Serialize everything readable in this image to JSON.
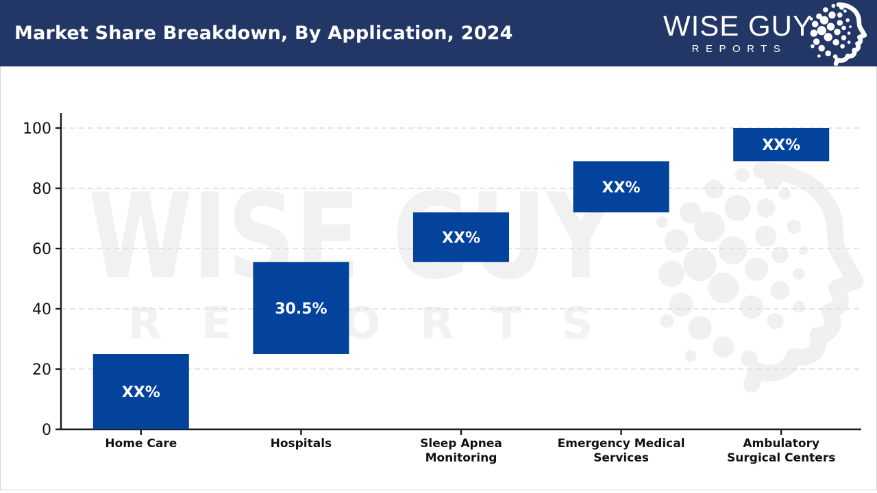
{
  "header": {
    "title": "Market Share Breakdown, By Application, 2024",
    "logo": {
      "line1": "WISE GUY",
      "line2": "REPORTS"
    }
  },
  "watermark": {
    "line1": "WISE GUY",
    "line2": "REPORTS"
  },
  "colors": {
    "header_bg": "#223765",
    "bar": "#04439c",
    "bar_label": "#ffffff",
    "gridline": "#dcdcdc",
    "axis": "#1a1a1a",
    "panel_border": "#d4d4d4",
    "watermark": "#f1f1f1"
  },
  "chart_data": {
    "type": "bar",
    "subtype": "floating-waterfall",
    "title": "Market Share Breakdown, By Application, 2024",
    "xlabel": "",
    "ylabel": "",
    "ylim": [
      0,
      100
    ],
    "yticks": [
      0,
      20,
      40,
      60,
      80,
      100
    ],
    "grid": "horizontal-dashed",
    "legend": false,
    "bar_color": "#04439c",
    "categories": [
      "Home Care",
      "Hospitals",
      "Sleep Apnea Monitoring",
      "Emergency Medical Services",
      "Ambulatory Surgical Centers"
    ],
    "bars": [
      {
        "category": "Home Care",
        "label_lines": [
          "Home Care"
        ],
        "start": 0,
        "end": 25,
        "value_label": "XX%"
      },
      {
        "category": "Hospitals",
        "label_lines": [
          "Hospitals"
        ],
        "start": 25,
        "end": 55.5,
        "value_label": "30.5%"
      },
      {
        "category": "Sleep Apnea Monitoring",
        "label_lines": [
          "Sleep Apnea",
          "Monitoring"
        ],
        "start": 55.5,
        "end": 72,
        "value_label": "XX%"
      },
      {
        "category": "Emergency Medical Services",
        "label_lines": [
          "Emergency Medical",
          "Services"
        ],
        "start": 72,
        "end": 89,
        "value_label": "XX%"
      },
      {
        "category": "Ambulatory Surgical Centers",
        "label_lines": [
          "Ambulatory",
          "Surgical Centers"
        ],
        "start": 89,
        "end": 100,
        "value_label": "XX%"
      }
    ]
  }
}
